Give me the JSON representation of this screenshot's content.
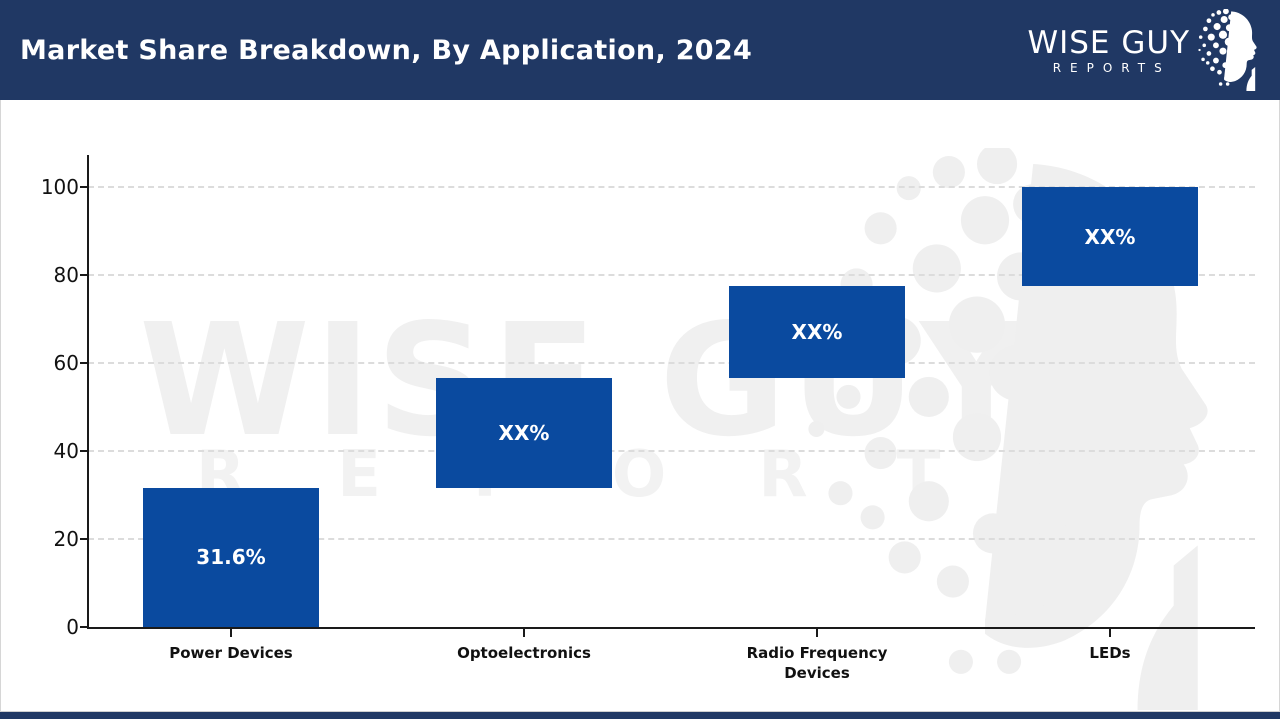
{
  "header": {
    "title": "Market Share Breakdown, By Application, 2024",
    "bg_color": "#203864",
    "logo": {
      "line1": "WISE GUY",
      "line2": "REPORTS"
    }
  },
  "watermark": {
    "line1": "WISE GUY",
    "line2": "REPORTS"
  },
  "footer": {
    "bg_color": "#203864"
  },
  "chart_data": {
    "type": "bar",
    "subtype": "waterfall-stacked-percentage",
    "title": "Market Share Breakdown, By Application, 2024",
    "categories": [
      "Power Devices",
      "Optoelectronics",
      "Radio Frequency\nDevices",
      "LEDs"
    ],
    "segments": [
      {
        "category": "Power Devices",
        "start": 0,
        "end": 31.6,
        "label": "31.6%"
      },
      {
        "category": "Optoelectronics",
        "start": 31.6,
        "end": 56.6,
        "label": "XX%"
      },
      {
        "category": "Radio Frequency Devices",
        "start": 56.6,
        "end": 77.4,
        "label": "XX%"
      },
      {
        "category": "LEDs",
        "start": 77.4,
        "end": 100,
        "label": "XX%"
      }
    ],
    "yticks": [
      0,
      20,
      40,
      60,
      80,
      100
    ],
    "ylim": [
      0,
      105
    ],
    "xlabel": "",
    "ylabel": "",
    "legend": "none",
    "grid": "horizontal-dashed",
    "bar_color": "#0a4a9f",
    "bar_label_color": "#ffffff",
    "axis_color": "#1a1a1a",
    "grid_color": "#dcdcdc"
  }
}
